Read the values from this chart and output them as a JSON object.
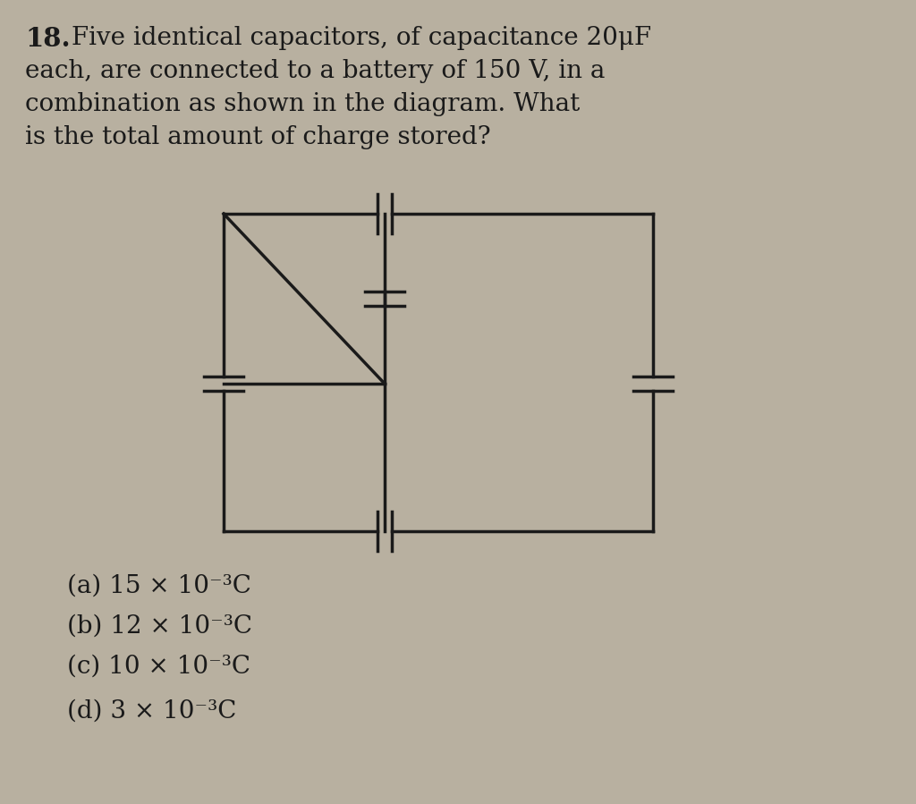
{
  "bg_color": "#b8b0a0",
  "text_color": "#1a1a1a",
  "line_color": "#1a1a1a",
  "question_number": "18.",
  "question_text_line1": "Five identical capacitors, of capacitance 20μF",
  "question_text_line2": "each, are connected to a battery of 150 V, in a",
  "question_text_line3": "combination as shown in the diagram. What",
  "question_text_line4": "is the total amount of charge stored?",
  "options": [
    "(a) 15 × 10⁻³C",
    "(b) 12 × 10⁻³C",
    "(c) 10 × 10⁻³C",
    "(d) 3 × 10⁻³C"
  ],
  "fig_width": 10.24,
  "fig_height": 8.99,
  "dpi": 100
}
